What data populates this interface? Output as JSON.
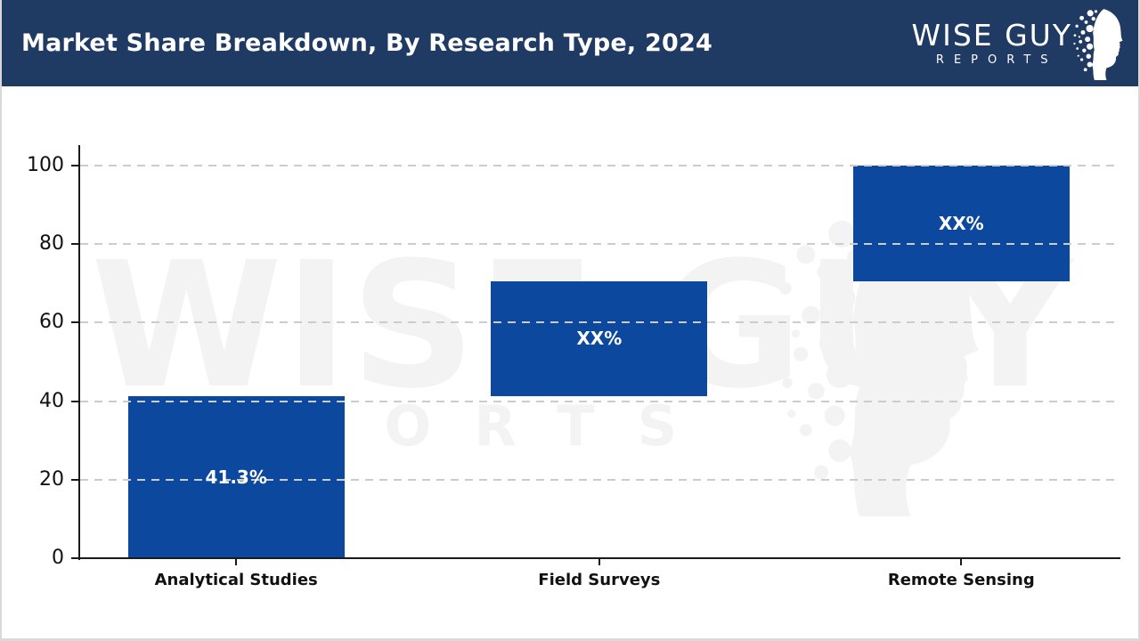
{
  "header": {
    "title": "Market Share Breakdown, By Research Type, 2024",
    "background_color": "#1f3a63"
  },
  "logo": {
    "wordmark": "WISE GUY",
    "subtext": "REPORTS",
    "face_icon": "dotted-head-profile"
  },
  "watermark": {
    "wordmark": "WISE GUY",
    "subtext": "REPORTS",
    "face_icon": "dotted-head-profile",
    "color": "#f3f3f3"
  },
  "chart_data": {
    "type": "bar",
    "variant": "waterfall",
    "title": "Market Share Breakdown, By Research Type, 2024",
    "categories": [
      "Analytical Studies",
      "Field Surveys",
      "Remote Sensing"
    ],
    "series": [
      {
        "name": "Market Share (%)",
        "bars": [
          {
            "category": "Analytical Studies",
            "start": 0,
            "end": 41.3,
            "label": "41.3%"
          },
          {
            "category": "Field Surveys",
            "start": 41.3,
            "end": 70.5,
            "label": "XX%"
          },
          {
            "category": "Remote Sensing",
            "start": 70.5,
            "end": 100,
            "label": "XX%"
          }
        ]
      }
    ],
    "ylim": [
      0,
      100
    ],
    "yticks": [
      0,
      20,
      40,
      60,
      80,
      100
    ],
    "xlabel": "",
    "ylabel": "",
    "legend_position": "none",
    "grid": "horizontal-dashed",
    "colors": {
      "bar": "#0c489e",
      "bar_label": "#ffffff",
      "gridline": "#cccccc",
      "axis": "#1a1a1a",
      "tick_label": "#111111"
    }
  }
}
